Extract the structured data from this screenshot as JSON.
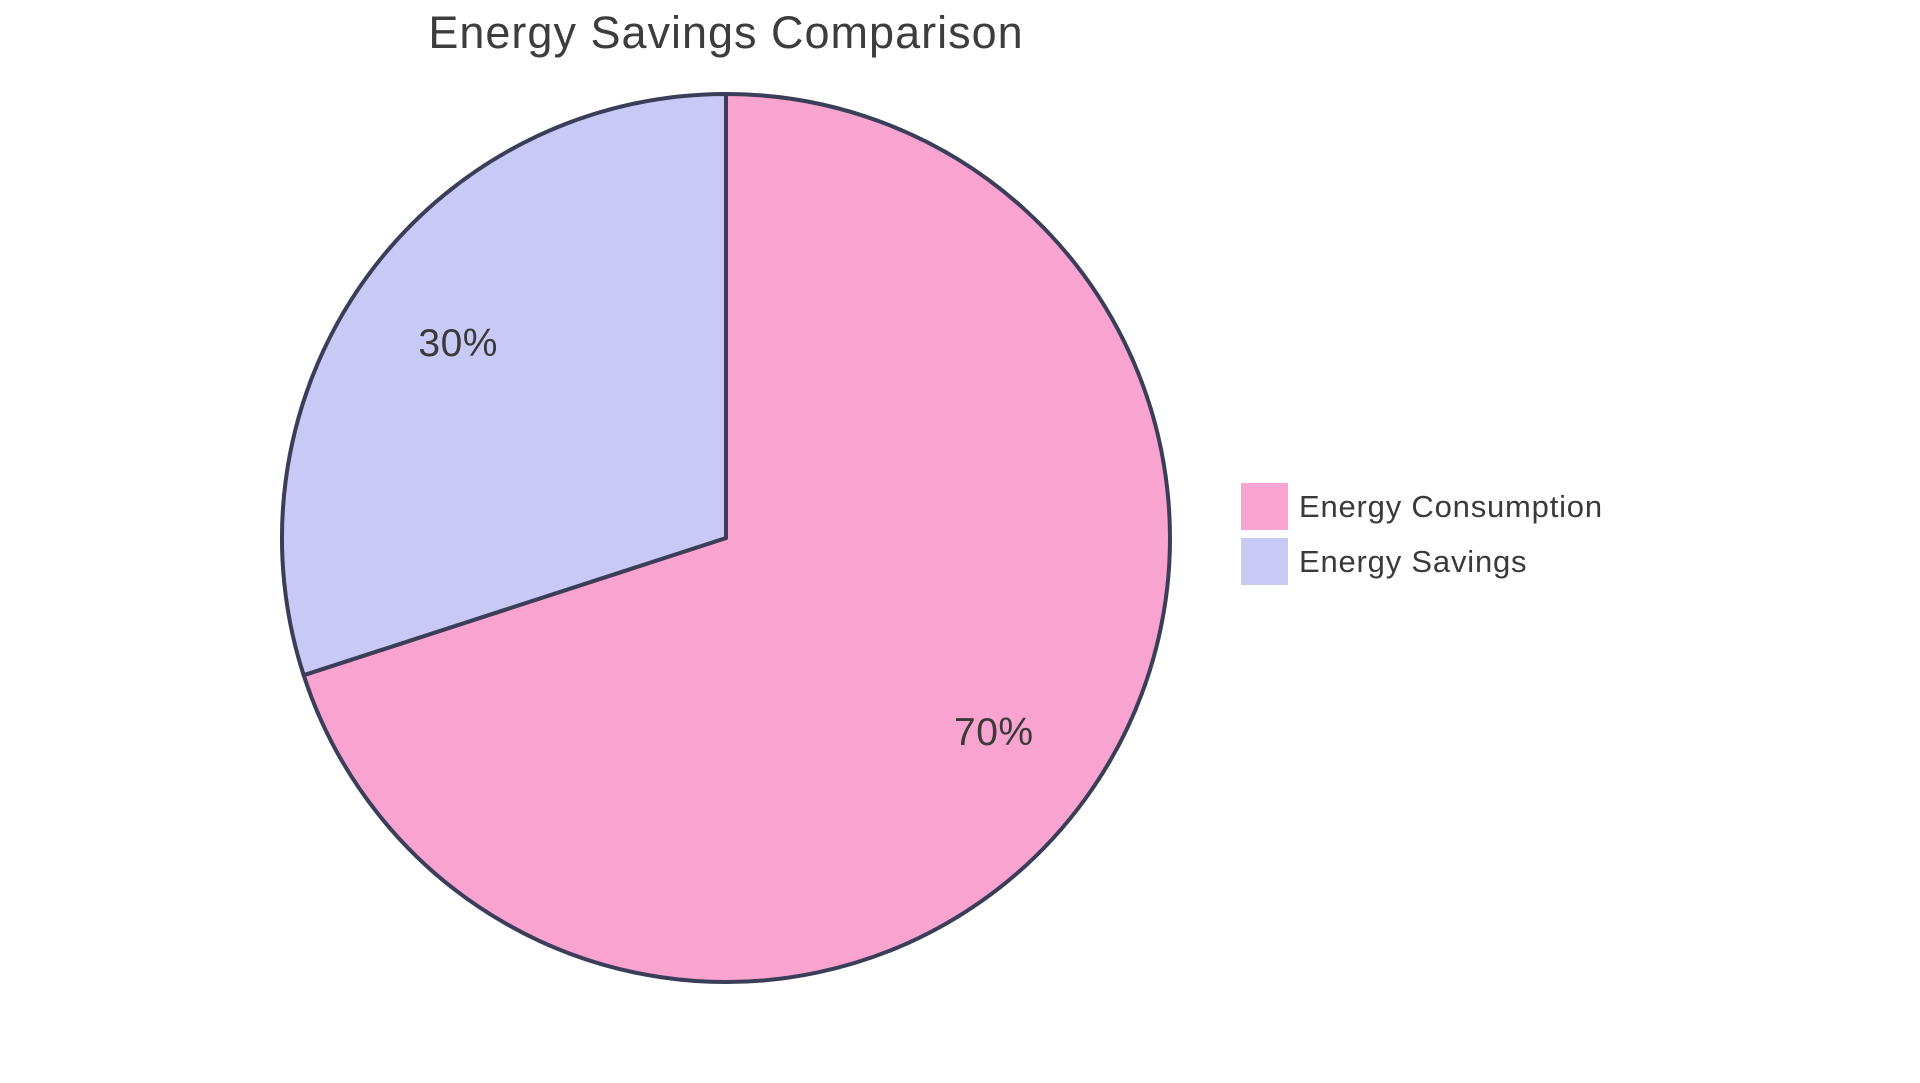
{
  "chart_data": {
    "type": "pie",
    "title": "Energy Savings Comparison",
    "segments": [
      {
        "label": "Energy Consumption",
        "value": 70,
        "percent_label": "70%",
        "color": "#F9A3D0"
      },
      {
        "label": "Energy Savings",
        "value": 30,
        "percent_label": "30%",
        "color": "#C9C9F5"
      }
    ],
    "outline_color": "#3B3E58",
    "text_color": "#3A3A3A",
    "background": "#FFFFFF",
    "start_angle": "top",
    "direction": "clockwise",
    "labels": "percent-inside",
    "legend_position": "middle-right"
  }
}
